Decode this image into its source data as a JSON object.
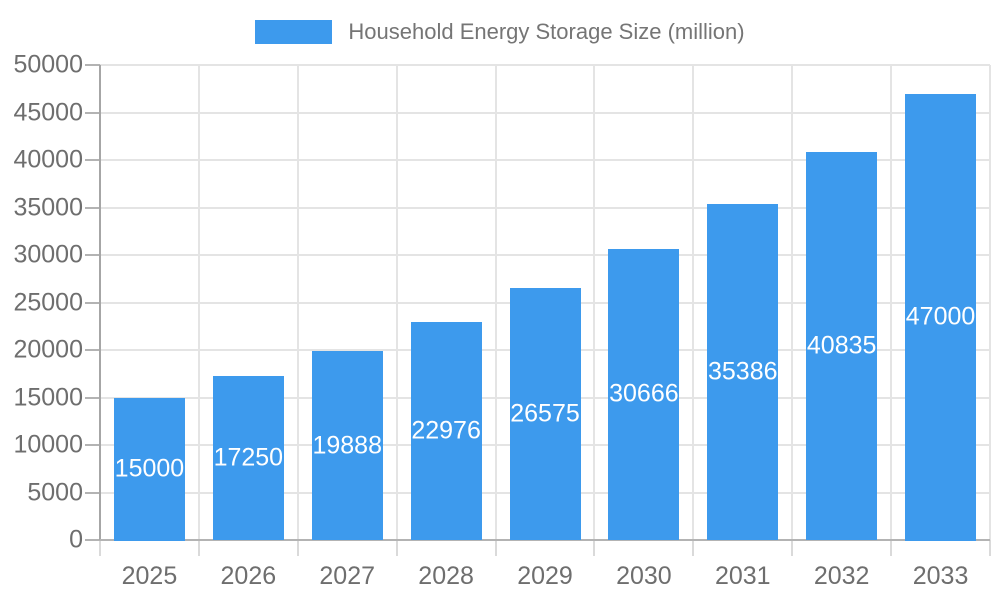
{
  "chart_data": {
    "type": "bar",
    "title": "Household Energy Storage Size (million)",
    "categories": [
      "2025",
      "2026",
      "2027",
      "2028",
      "2029",
      "2030",
      "2031",
      "2032",
      "2033"
    ],
    "values": [
      15000,
      17250,
      19888,
      22976,
      26575,
      30666,
      35386,
      40835,
      47000
    ],
    "value_labels": [
      "15000",
      "17250",
      "19888",
      "22976",
      "26575",
      "30666",
      "35386",
      "40835",
      "47000"
    ],
    "xlabel": "",
    "ylabel": "",
    "ylim": [
      0,
      50000
    ],
    "yticks": [
      0,
      5000,
      10000,
      15000,
      20000,
      25000,
      30000,
      35000,
      40000,
      45000,
      50000
    ],
    "ytick_labels": [
      "0",
      "5000",
      "10000",
      "15000",
      "20000",
      "25000",
      "30000",
      "35000",
      "40000",
      "45000",
      "50000"
    ],
    "grid": true,
    "legend_position": "top",
    "colors": {
      "bar": "#3D9AED",
      "bar_label": "#FFFFFF",
      "gridline": "#E4E4E4",
      "y_axis_line": "#A6A6A6",
      "baseline": "#B3B3B3",
      "y_tick": "#B3B3B3",
      "x_tick": "#DADADA",
      "axis_label": "#6E6E6E",
      "legend_text": "#757575",
      "background": "#FFFFFF"
    }
  }
}
